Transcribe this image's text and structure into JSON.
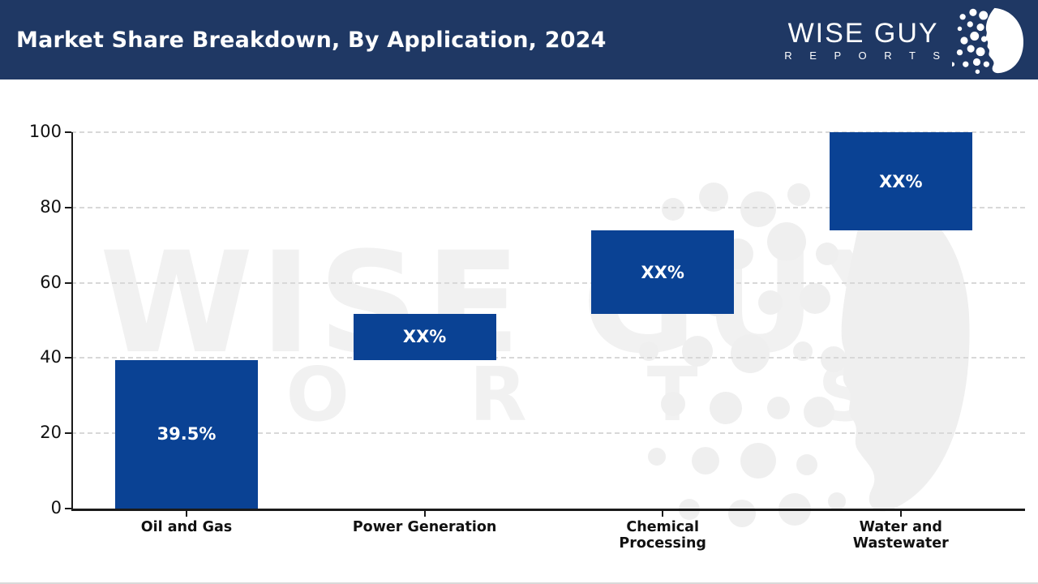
{
  "header": {
    "title": "Market Share Breakdown, By Application, 2024",
    "bg_color": "#1f3864",
    "logo": {
      "line1": "WISE GUY",
      "line2": "R E P O R T S"
    }
  },
  "watermark": {
    "line1": "WISE GUY",
    "line2": "P O R T S"
  },
  "chart_data": {
    "type": "bar",
    "subtype": "waterfall-floating-bars",
    "title": "Market Share Breakdown, By Application, 2024",
    "categories": [
      "Oil and Gas",
      "Power Generation",
      "Chemical\nProcessing",
      "Water and\nWastewater"
    ],
    "segments": [
      {
        "start": 0,
        "end": 39.5
      },
      {
        "start": 39.5,
        "end": 51.7
      },
      {
        "start": 51.7,
        "end": 73.9
      },
      {
        "start": 73.9,
        "end": 100
      }
    ],
    "bar_labels": [
      "39.5%",
      "XX%",
      "XX%",
      "XX%"
    ],
    "bar_color": "#0a4294",
    "bar_label_color": "#ffffff",
    "xlabel": "",
    "ylabel": "",
    "ylim": [
      0,
      100
    ],
    "yticks": [
      0,
      20,
      40,
      60,
      80,
      100
    ],
    "grid": "horizontal-dashed",
    "legend": "none"
  }
}
